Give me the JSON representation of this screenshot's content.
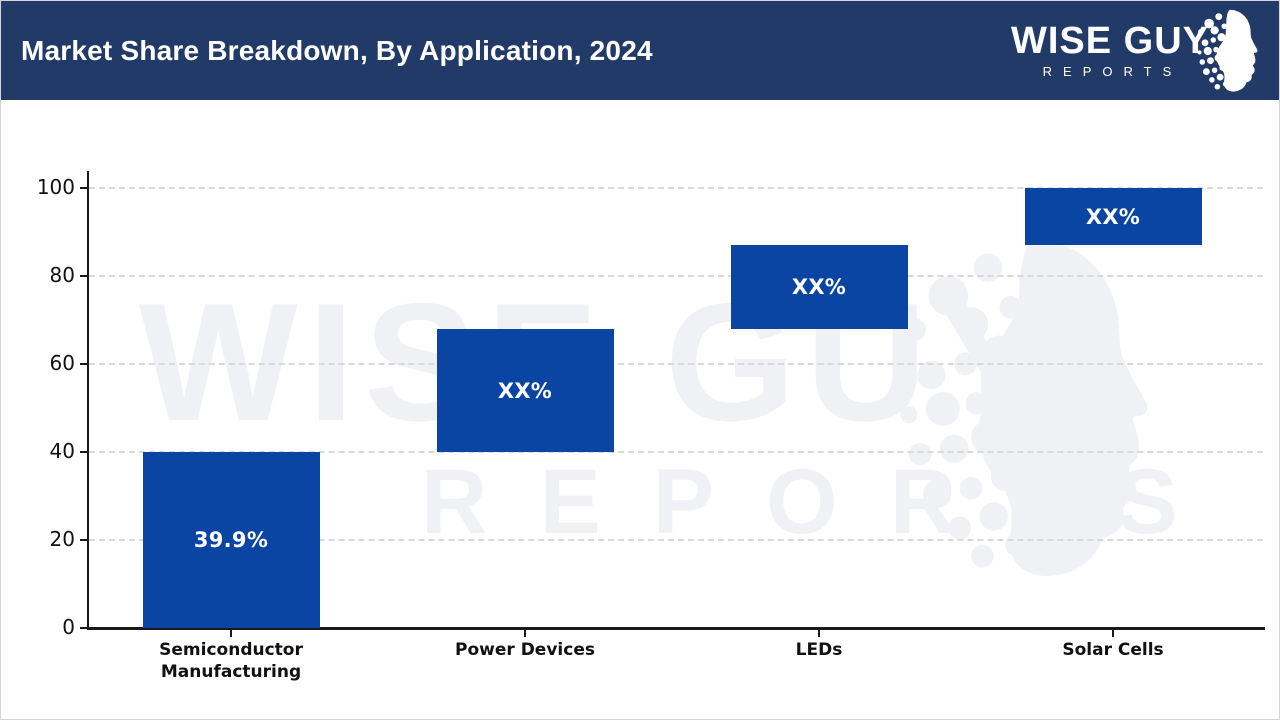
{
  "header": {
    "title": "Market Share Breakdown, By Application, 2024",
    "logo": {
      "wordmark": "WISE GUY",
      "subtext": "REPORTS"
    }
  },
  "watermark": {
    "wordmark": "WISE GUY",
    "subtext": "REPORTS"
  },
  "chart_data": {
    "type": "bar",
    "subtype": "waterfall_breakdown",
    "title": "Market Share Breakdown, By Application, 2024",
    "categories": [
      "Semiconductor Manufacturing",
      "Power Devices",
      "LEDs",
      "Solar Cells"
    ],
    "segments": [
      {
        "category": "Semiconductor Manufacturing",
        "start": 0,
        "end": 39.9,
        "label": "39.9%"
      },
      {
        "category": "Power Devices",
        "start": 39.9,
        "end": 68,
        "label": "XX%"
      },
      {
        "category": "LEDs",
        "start": 68,
        "end": 87,
        "label": "XX%"
      },
      {
        "category": "Solar Cells",
        "start": 87,
        "end": 100,
        "label": "XX%"
      }
    ],
    "yticks": [
      0,
      20,
      40,
      60,
      80,
      100
    ],
    "ylim": [
      0,
      104
    ],
    "xlabel": "",
    "ylabel": "",
    "legend": "none",
    "grid": "horizontal-dashed",
    "bar_color": "#0A45A4",
    "bar_label_color": "#FFFFFF"
  },
  "colors": {
    "header_bg": "#213A67",
    "bar": "#0A45A4",
    "axis": "#1A1A1A",
    "grid": "#D9D9D9",
    "watermark": "#F0F1F4",
    "canvas_bg": "#FFFFFF"
  }
}
